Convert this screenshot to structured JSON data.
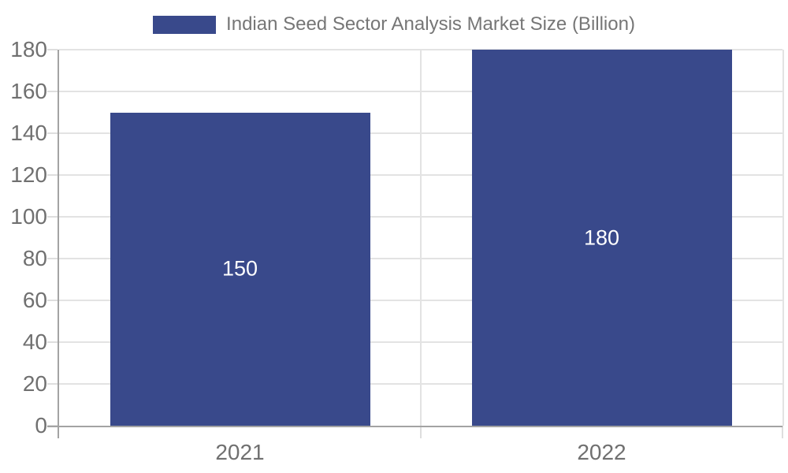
{
  "legend": {
    "label": "Indian Seed Sector Analysis Market Size (Billion)"
  },
  "chart_data": {
    "type": "bar",
    "title": "Indian Seed Sector Analysis Market Size (Billion)",
    "categories": [
      "2021",
      "2022"
    ],
    "values": [
      150,
      180
    ],
    "value_labels": [
      "150",
      "180"
    ],
    "xlabel": "",
    "ylabel": "",
    "ylim": [
      0,
      180
    ],
    "yticks": [
      0,
      20,
      40,
      60,
      80,
      100,
      120,
      140,
      160,
      180
    ],
    "grid": true,
    "legend_position": "top-center",
    "colors": {
      "bar": "#39498b",
      "axis_line": "#a3a3a3",
      "gridline": "#e3e3e3",
      "tick": "#dedede",
      "axis_text": "#707070",
      "legend_text": "#767676",
      "value_label_text": "#ffffff",
      "background": "#ffffff"
    }
  }
}
